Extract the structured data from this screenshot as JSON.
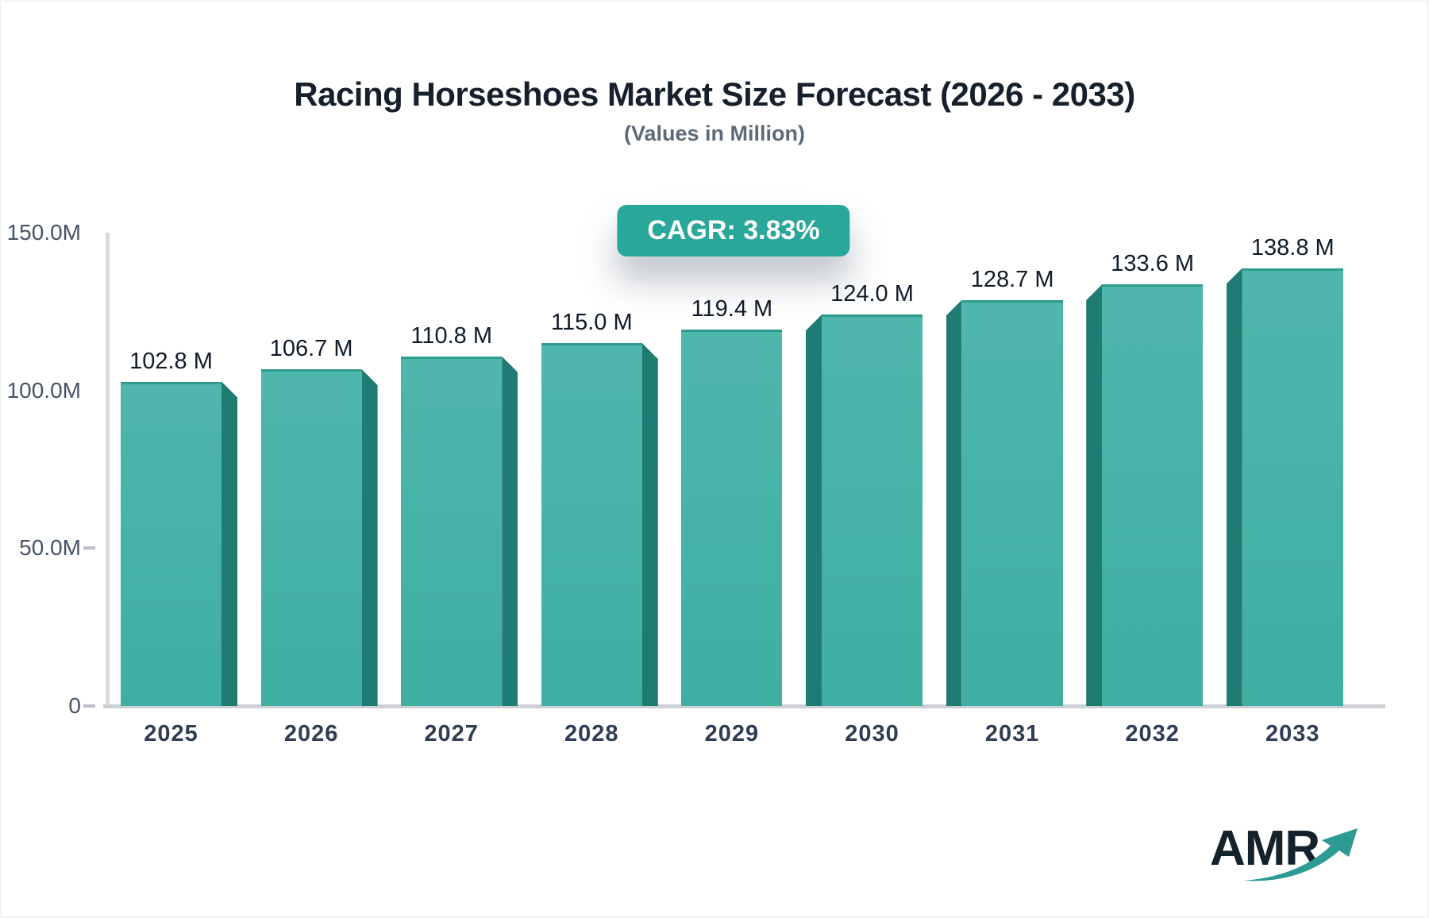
{
  "header": {
    "title": "Racing Horseshoes Market Size Forecast (2026 - 2033)",
    "subtitle": "(Values in Million)",
    "cagr_badge": "CAGR: 3.83%"
  },
  "footer": {
    "logo_text": "AMR",
    "logo_arrow_icon": "trend-arrow-icon"
  },
  "colors": {
    "title": "#16202c",
    "subtitle": "#5d6a78",
    "badge_bg": "#2aa79b",
    "badge_text": "#ffffff",
    "bar_face_top": "#4fb6ac",
    "bar_face_bottom": "#3eafa1",
    "bar_face_edge": "#2e9b8f",
    "bar_side": "#1f7c72",
    "y_axis_line": "#d6d9dd",
    "x_axis_line": "#ccd0d4",
    "tick_dash": "#b9bfc6",
    "y_label": "#46536a",
    "year_label": "#2e3c54",
    "value_label": "#101b28",
    "logo_text": "#14222b",
    "logo_arrow": "#2d9a93"
  },
  "chart_data": {
    "type": "bar",
    "title": "Racing Horseshoes Market Size Forecast (2026 - 2033)",
    "subtitle": "(Values in Million)",
    "annotation": "CAGR: 3.83%",
    "categories": [
      "2025",
      "2026",
      "2027",
      "2028",
      "2029",
      "2030",
      "2031",
      "2032",
      "2033"
    ],
    "values": [
      102.8,
      106.7,
      110.8,
      115.0,
      119.4,
      124.0,
      128.7,
      133.6,
      138.8
    ],
    "labels": [
      "102.8 M",
      "106.7 M",
      "110.8 M",
      "115.0 M",
      "119.4 M",
      "124.0 M",
      "128.7 M",
      "133.6 M",
      "138.8 M"
    ],
    "unit": "Million",
    "xlabel": "",
    "ylabel": "",
    "ylim": [
      0,
      150
    ],
    "grid": false,
    "legend": false,
    "y_ticks": [
      {
        "label": "150.0M",
        "value": 150,
        "dash": false
      },
      {
        "label": "100.0M",
        "value": 100,
        "dash": false
      },
      {
        "label": "50.0M",
        "value": 50,
        "dash": true
      },
      {
        "label": "0",
        "value": 0,
        "dash": true
      }
    ]
  }
}
